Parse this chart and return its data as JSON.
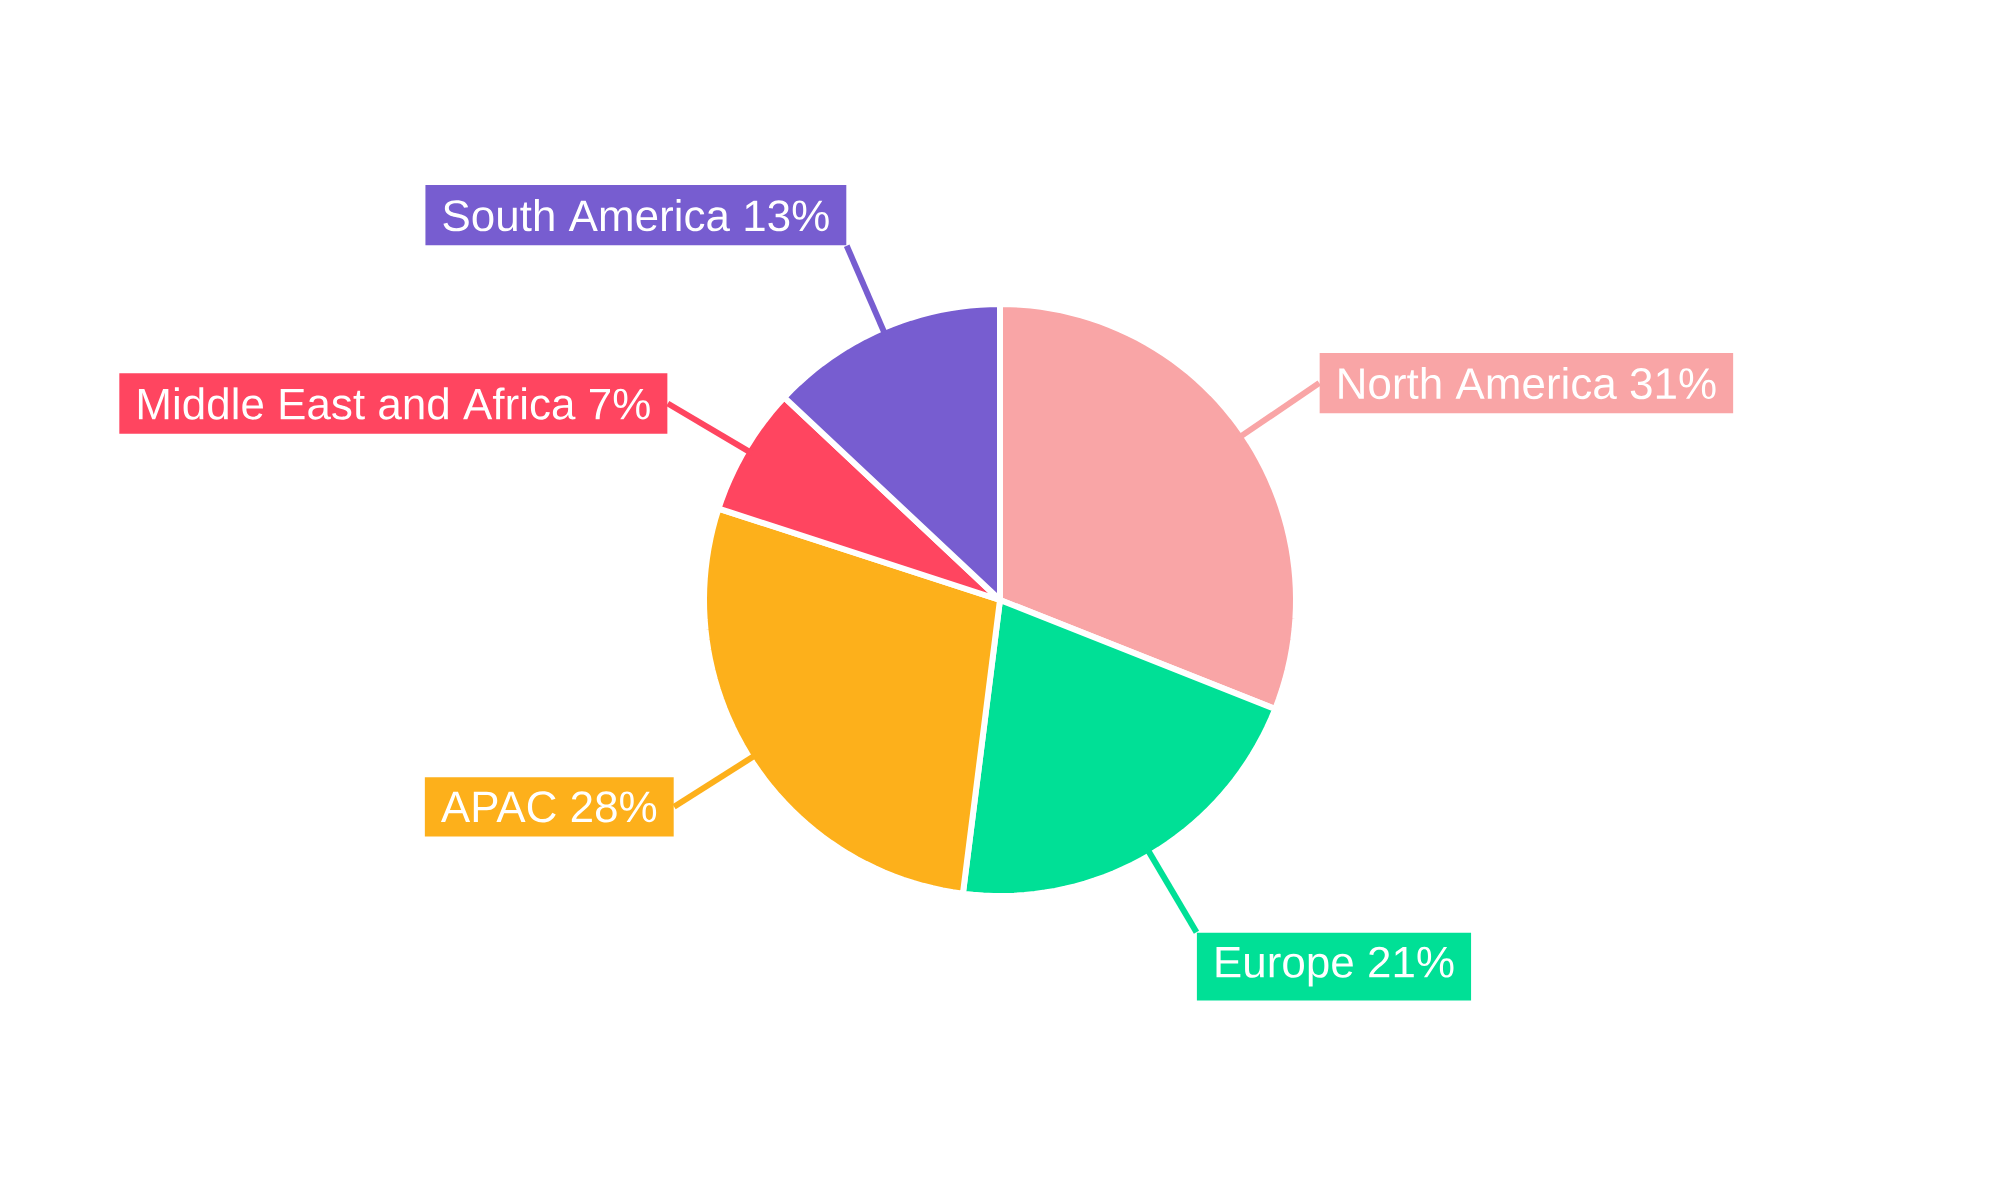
{
  "chart_data": {
    "type": "pie",
    "categories": [
      "North America",
      "Europe",
      "APAC",
      "Middle East and Africa",
      "South America"
    ],
    "values": [
      31,
      21,
      28,
      7,
      13
    ],
    "value_labels": [
      "31%",
      "21%",
      "28%",
      "7%",
      "13%"
    ],
    "colors": [
      "#f9a5a6",
      "#00e096",
      "#fdb01b",
      "#ff4560",
      "#775dd0"
    ]
  }
}
